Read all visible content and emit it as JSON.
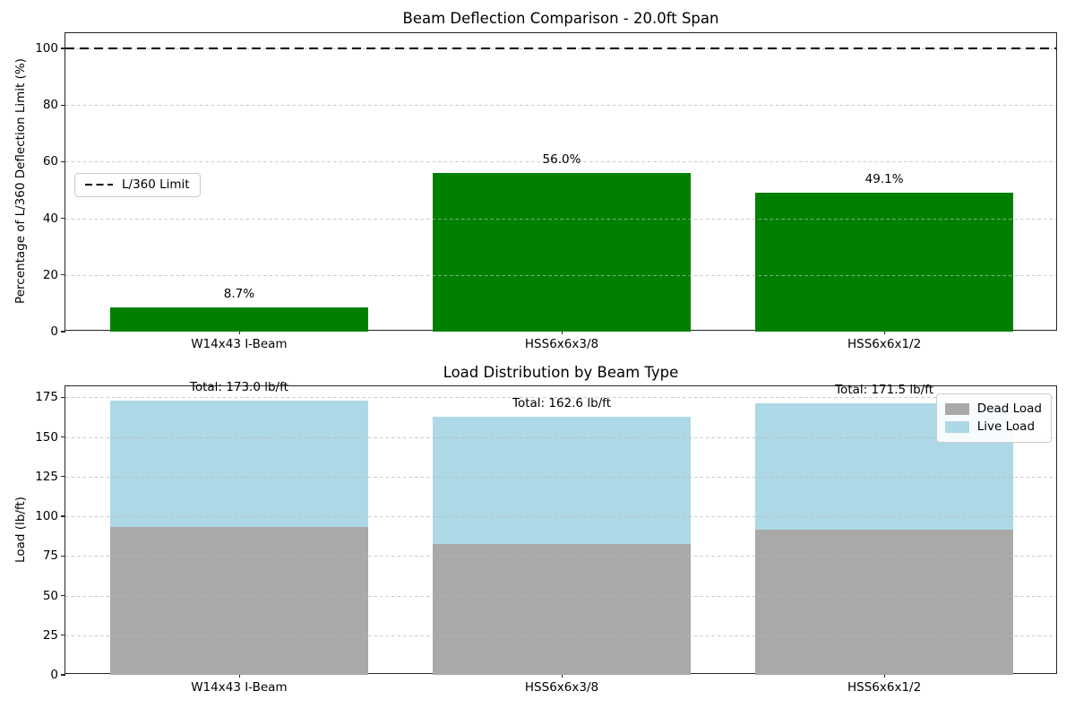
{
  "figure_background": "#ffffff",
  "chart_data": [
    {
      "type": "bar",
      "title": "Beam Deflection Comparison - 20.0ft Span",
      "xlabel": "",
      "ylabel": "Percentage of L/360 Deflection Limit (%)",
      "categories": [
        "W14x43 I-Beam",
        "HSS6x6x3/8",
        "HSS6x6x1/2"
      ],
      "values": [
        8.7,
        56.0,
        49.1
      ],
      "value_labels": [
        "8.7%",
        "56.0%",
        "49.1%"
      ],
      "bar_color": "#008000",
      "yticks": [
        0,
        20,
        40,
        60,
        80,
        100
      ],
      "ylim": [
        0,
        105.4
      ],
      "grid": "horizontal dashed",
      "legend_position": "center left",
      "reference_line": {
        "y": 100,
        "color": "#000000",
        "style": "dashed",
        "label": "L/360 Limit"
      }
    },
    {
      "type": "bar",
      "stacked": true,
      "title": "Load Distribution by Beam Type",
      "xlabel": "",
      "ylabel": "Load (lb/ft)",
      "categories": [
        "W14x43 I-Beam",
        "HSS6x6x3/8",
        "HSS6x6x1/2"
      ],
      "series": [
        {
          "name": "Dead Load",
          "color": "#a9a9a9",
          "values": [
            93.0,
            82.6,
            91.5
          ]
        },
        {
          "name": "Live Load",
          "color": "#add8e6",
          "values": [
            80.0,
            80.0,
            80.0
          ]
        }
      ],
      "totals": [
        173.0,
        162.6,
        171.5
      ],
      "total_labels": [
        "Total: 173.0 lb/ft",
        "Total: 162.6 lb/ft",
        "Total: 171.5 lb/ft"
      ],
      "yticks": [
        0,
        25,
        50,
        75,
        100,
        125,
        150,
        175
      ],
      "ylim": [
        0,
        182
      ],
      "grid": "horizontal dashed",
      "legend_position": "upper right"
    }
  ]
}
